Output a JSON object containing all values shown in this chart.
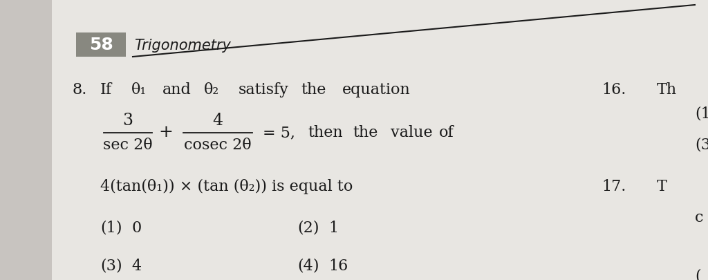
{
  "bg_left_strip": "#c8c4c0",
  "page_bg": "#e8e6e2",
  "header_box_color": "#888880",
  "header_number": "58",
  "header_title": "Trigonometry",
  "header_line_color": "#1a1a1a",
  "text_color": "#1a1a1a",
  "q_number": "8.",
  "line1_parts": [
    "If",
    "θ₁",
    "and",
    "θ₂",
    "satisfy",
    "the",
    "equation"
  ],
  "right_16": "16.",
  "right_Th": "Th",
  "right_1": "(1",
  "right_3": "(3",
  "line2_num_left": "3",
  "line2_denom_left": "sec 2θ",
  "line2_plus": "+",
  "line2_num_right": "4",
  "line2_denom_right": "cosec 2θ",
  "line2_eq_rest": "= 5,   then   the   value   of",
  "line3": "4(tan(θ₁)) × (tan (θ₂)) is equal to",
  "right_17": "17.",
  "right_T": "T",
  "right_c": "c",
  "right_paren": "(",
  "opt1_label": "(1)",
  "opt1_val": "0",
  "opt2_label": "(2)",
  "opt2_val": "1",
  "opt3_label": "(3)",
  "opt3_val": "4",
  "opt4_label": "(4)",
  "opt4_val": "16",
  "fs_header_num": 18,
  "fs_header_title": 15,
  "fs_body": 16,
  "fs_options": 16
}
